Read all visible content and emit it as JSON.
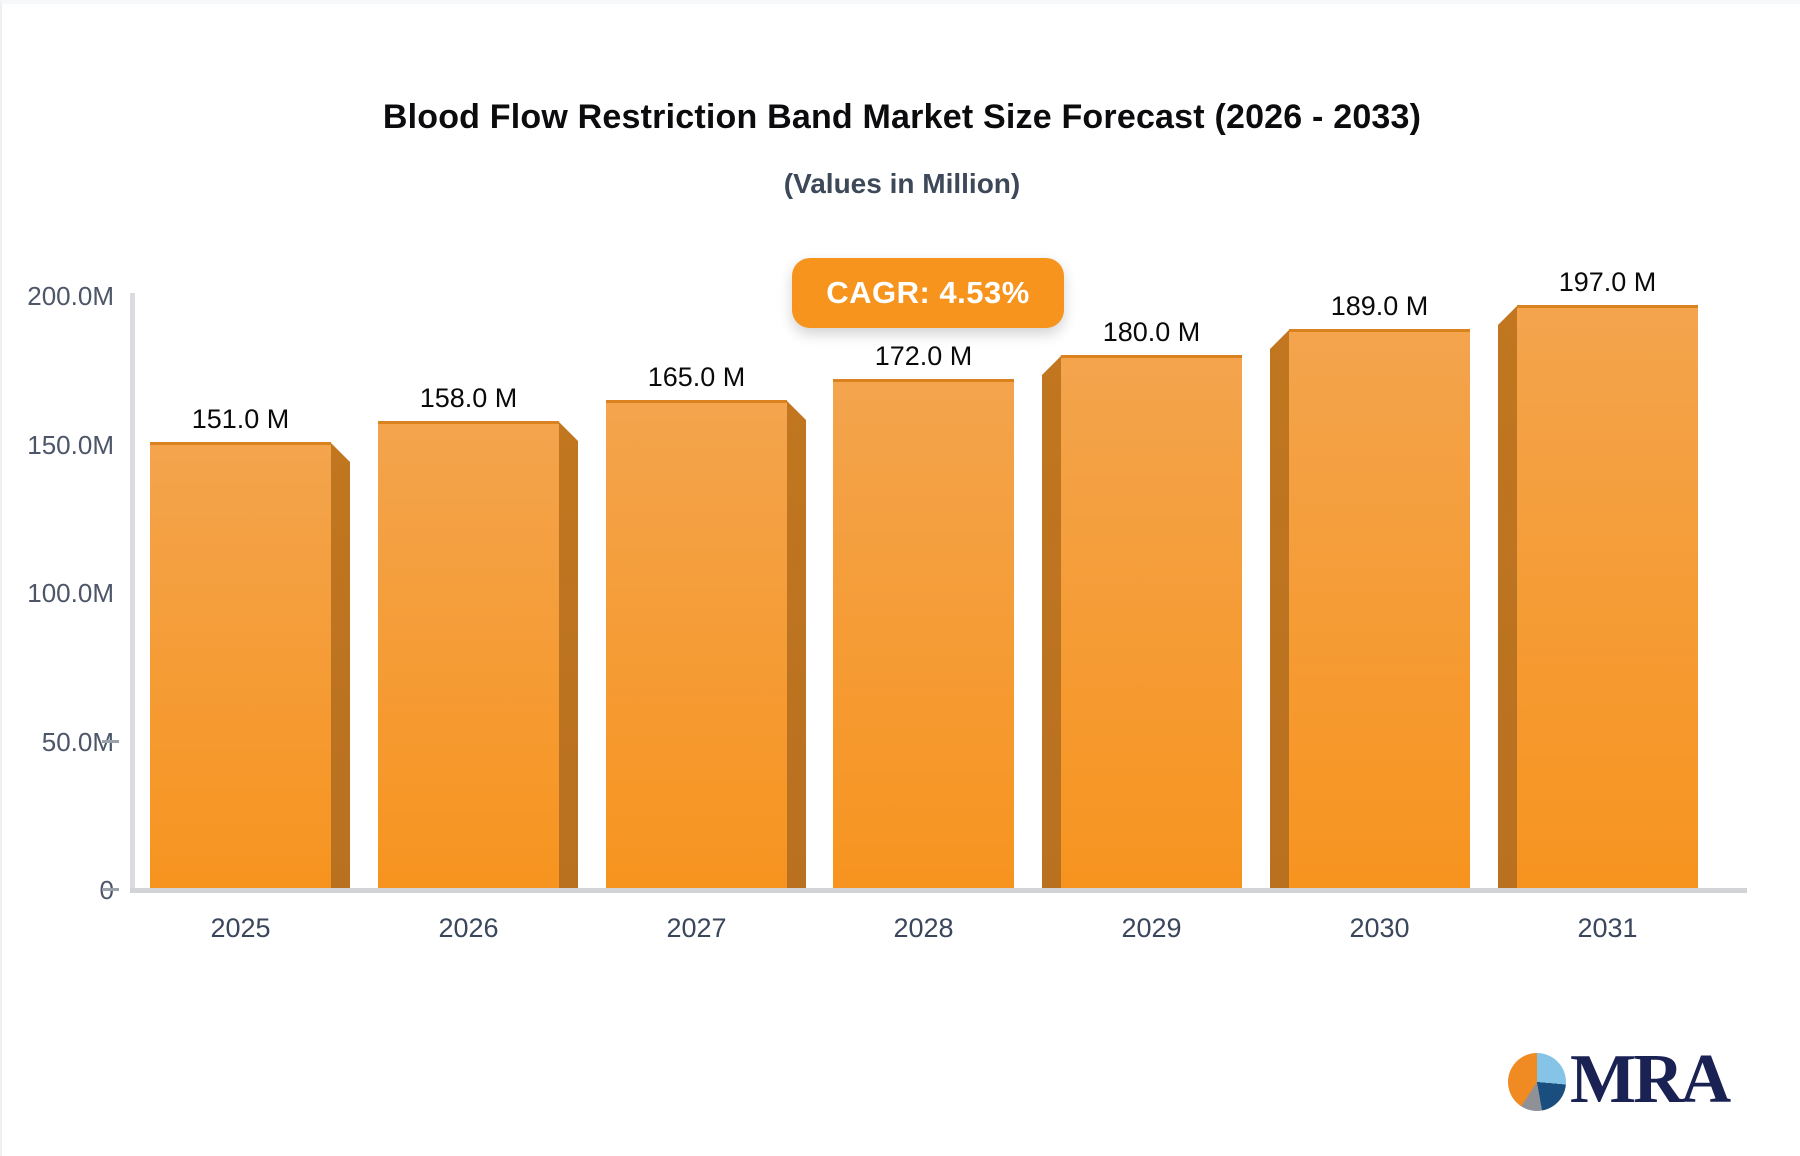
{
  "title": "Blood Flow Restriction Band Market Size Forecast (2026 - 2033)",
  "subtitle": "(Values in Million)",
  "badge": {
    "label": "CAGR: 4.53%",
    "color": "#f7941d",
    "text_color": "#ffffff"
  },
  "chart_data": {
    "type": "bar",
    "style": "3d-column",
    "title": "Blood Flow Restriction Band Market Size Forecast (2026 - 2033)",
    "subtitle": "(Values in Million)",
    "categories": [
      "2025",
      "2026",
      "2027",
      "2028",
      "2029",
      "2030",
      "2031"
    ],
    "values": [
      151,
      158,
      165,
      172,
      180,
      189,
      197
    ],
    "bar_labels": [
      "151.0 M",
      "158.0 M",
      "165.0 M",
      "172.0 M",
      "180.0 M",
      "189.0 M",
      "197.0 M"
    ],
    "xlabel": "",
    "ylabel": "",
    "ylim": [
      0,
      200
    ],
    "y_ticks": [
      "200.0M",
      "150.0M",
      "100.0M",
      "50.0M",
      "0"
    ],
    "y_tick_values": [
      200,
      150,
      100,
      50,
      0
    ],
    "grid": false,
    "legend": false,
    "annotation": "CAGR: 4.53%",
    "colors": {
      "bar_face_top": "#f3a44d",
      "bar_face_bottom": "#f7941f",
      "bar_top_edge": "#d9821f",
      "bar_side": "#b97120",
      "axis_line": "#d2d3d7",
      "tick_label": "#4c5668",
      "category_label": "#3a465c",
      "value_label": "#0a0a0a"
    }
  },
  "logo": {
    "text": "MRA",
    "text_color": "#1a2153",
    "pie_orange": "#ef8b22",
    "pie_light_blue": "#85c4e6",
    "pie_navy": "#1a4e7e",
    "pie_gray": "#8f9196"
  }
}
